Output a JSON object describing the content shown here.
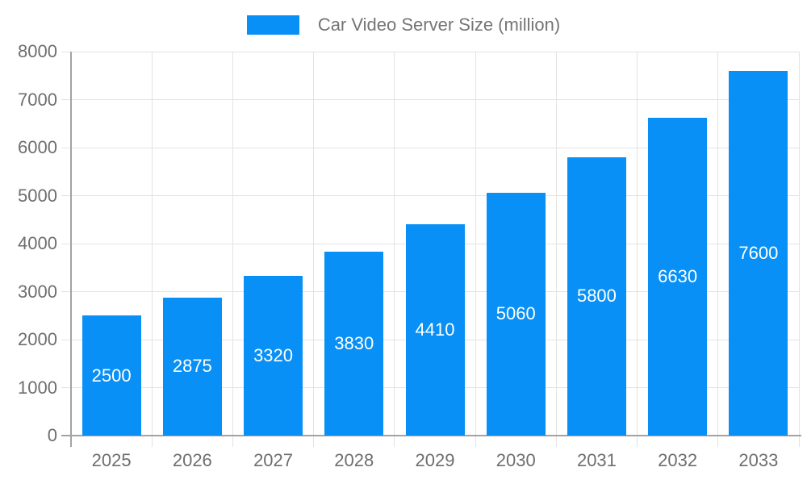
{
  "colors": {
    "bar": "#0890f6",
    "axis": "#a3a3a3",
    "grid": "#e3e3e3",
    "tick_label_text": "#6e6e6e",
    "legend_text": "#757575",
    "bar_label_text": "#ffffff",
    "background": "#ffffff"
  },
  "chart_data": {
    "type": "bar",
    "title": "",
    "series_name": "Car Video Server Size (million)",
    "categories": [
      "2025",
      "2026",
      "2027",
      "2028",
      "2029",
      "2030",
      "2031",
      "2032",
      "2033"
    ],
    "values": [
      2500,
      2875,
      3320,
      3830,
      4410,
      5060,
      5800,
      6630,
      7600
    ],
    "value_labels": [
      "2500",
      "2875",
      "3320",
      "3830",
      "4410",
      "5060",
      "5800",
      "6630",
      "7600"
    ],
    "xlabel": "",
    "ylabel": "",
    "ylim": [
      0,
      8000
    ],
    "ytick_step": 1000,
    "ytick_labels": [
      "0",
      "1000",
      "2000",
      "3000",
      "4000",
      "5000",
      "6000",
      "7000",
      "8000"
    ],
    "grid": true,
    "legend_position": "top",
    "value_label_position": "center"
  }
}
